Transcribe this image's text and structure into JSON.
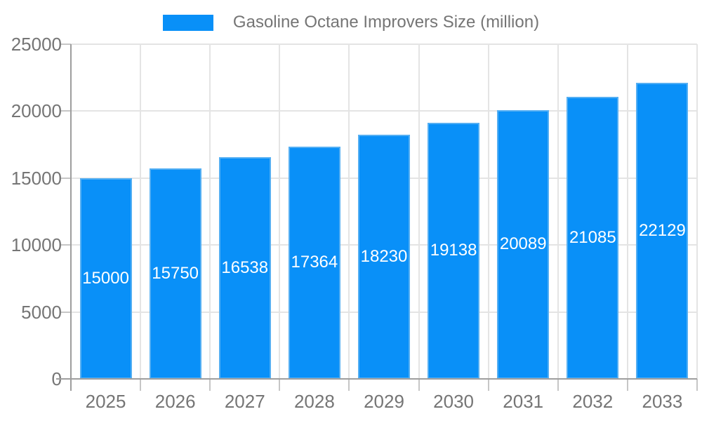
{
  "legend": {
    "label": "Gasoline Octane Improvers Size (million)"
  },
  "chart_data": {
    "type": "bar",
    "title": "",
    "legend_entries": [
      "Gasoline Octane Improvers Size (million)"
    ],
    "legend_position": "top",
    "categories": [
      "2025",
      "2026",
      "2027",
      "2028",
      "2029",
      "2030",
      "2031",
      "2032",
      "2033"
    ],
    "series": [
      {
        "name": "Gasoline Octane Improvers Size (million)",
        "values": [
          15000,
          15750,
          16538,
          17364,
          18230,
          19138,
          20089,
          21085,
          22129
        ]
      }
    ],
    "value_labels": [
      "15000",
      "15750",
      "16538",
      "17364",
      "18230",
      "19138",
      "20089",
      "21085",
      "22129"
    ],
    "bar_label_position": "inside-center",
    "xlabel": "",
    "ylabel": "",
    "ylim": [
      0,
      25000
    ],
    "yticks": [
      0,
      5000,
      10000,
      15000,
      20000,
      25000
    ],
    "grid": true,
    "colors": {
      "bar_fill": "#0990f8",
      "bar_edge": "#54aff3",
      "bar_label_text": "#ffffff",
      "axis_text": "#757575",
      "legend_text": "#757575",
      "grid_line": "#e4e4e4",
      "axis_line": "#9e9e9e",
      "tick_line": "#c6c6c6",
      "background": "#ffffff"
    }
  }
}
